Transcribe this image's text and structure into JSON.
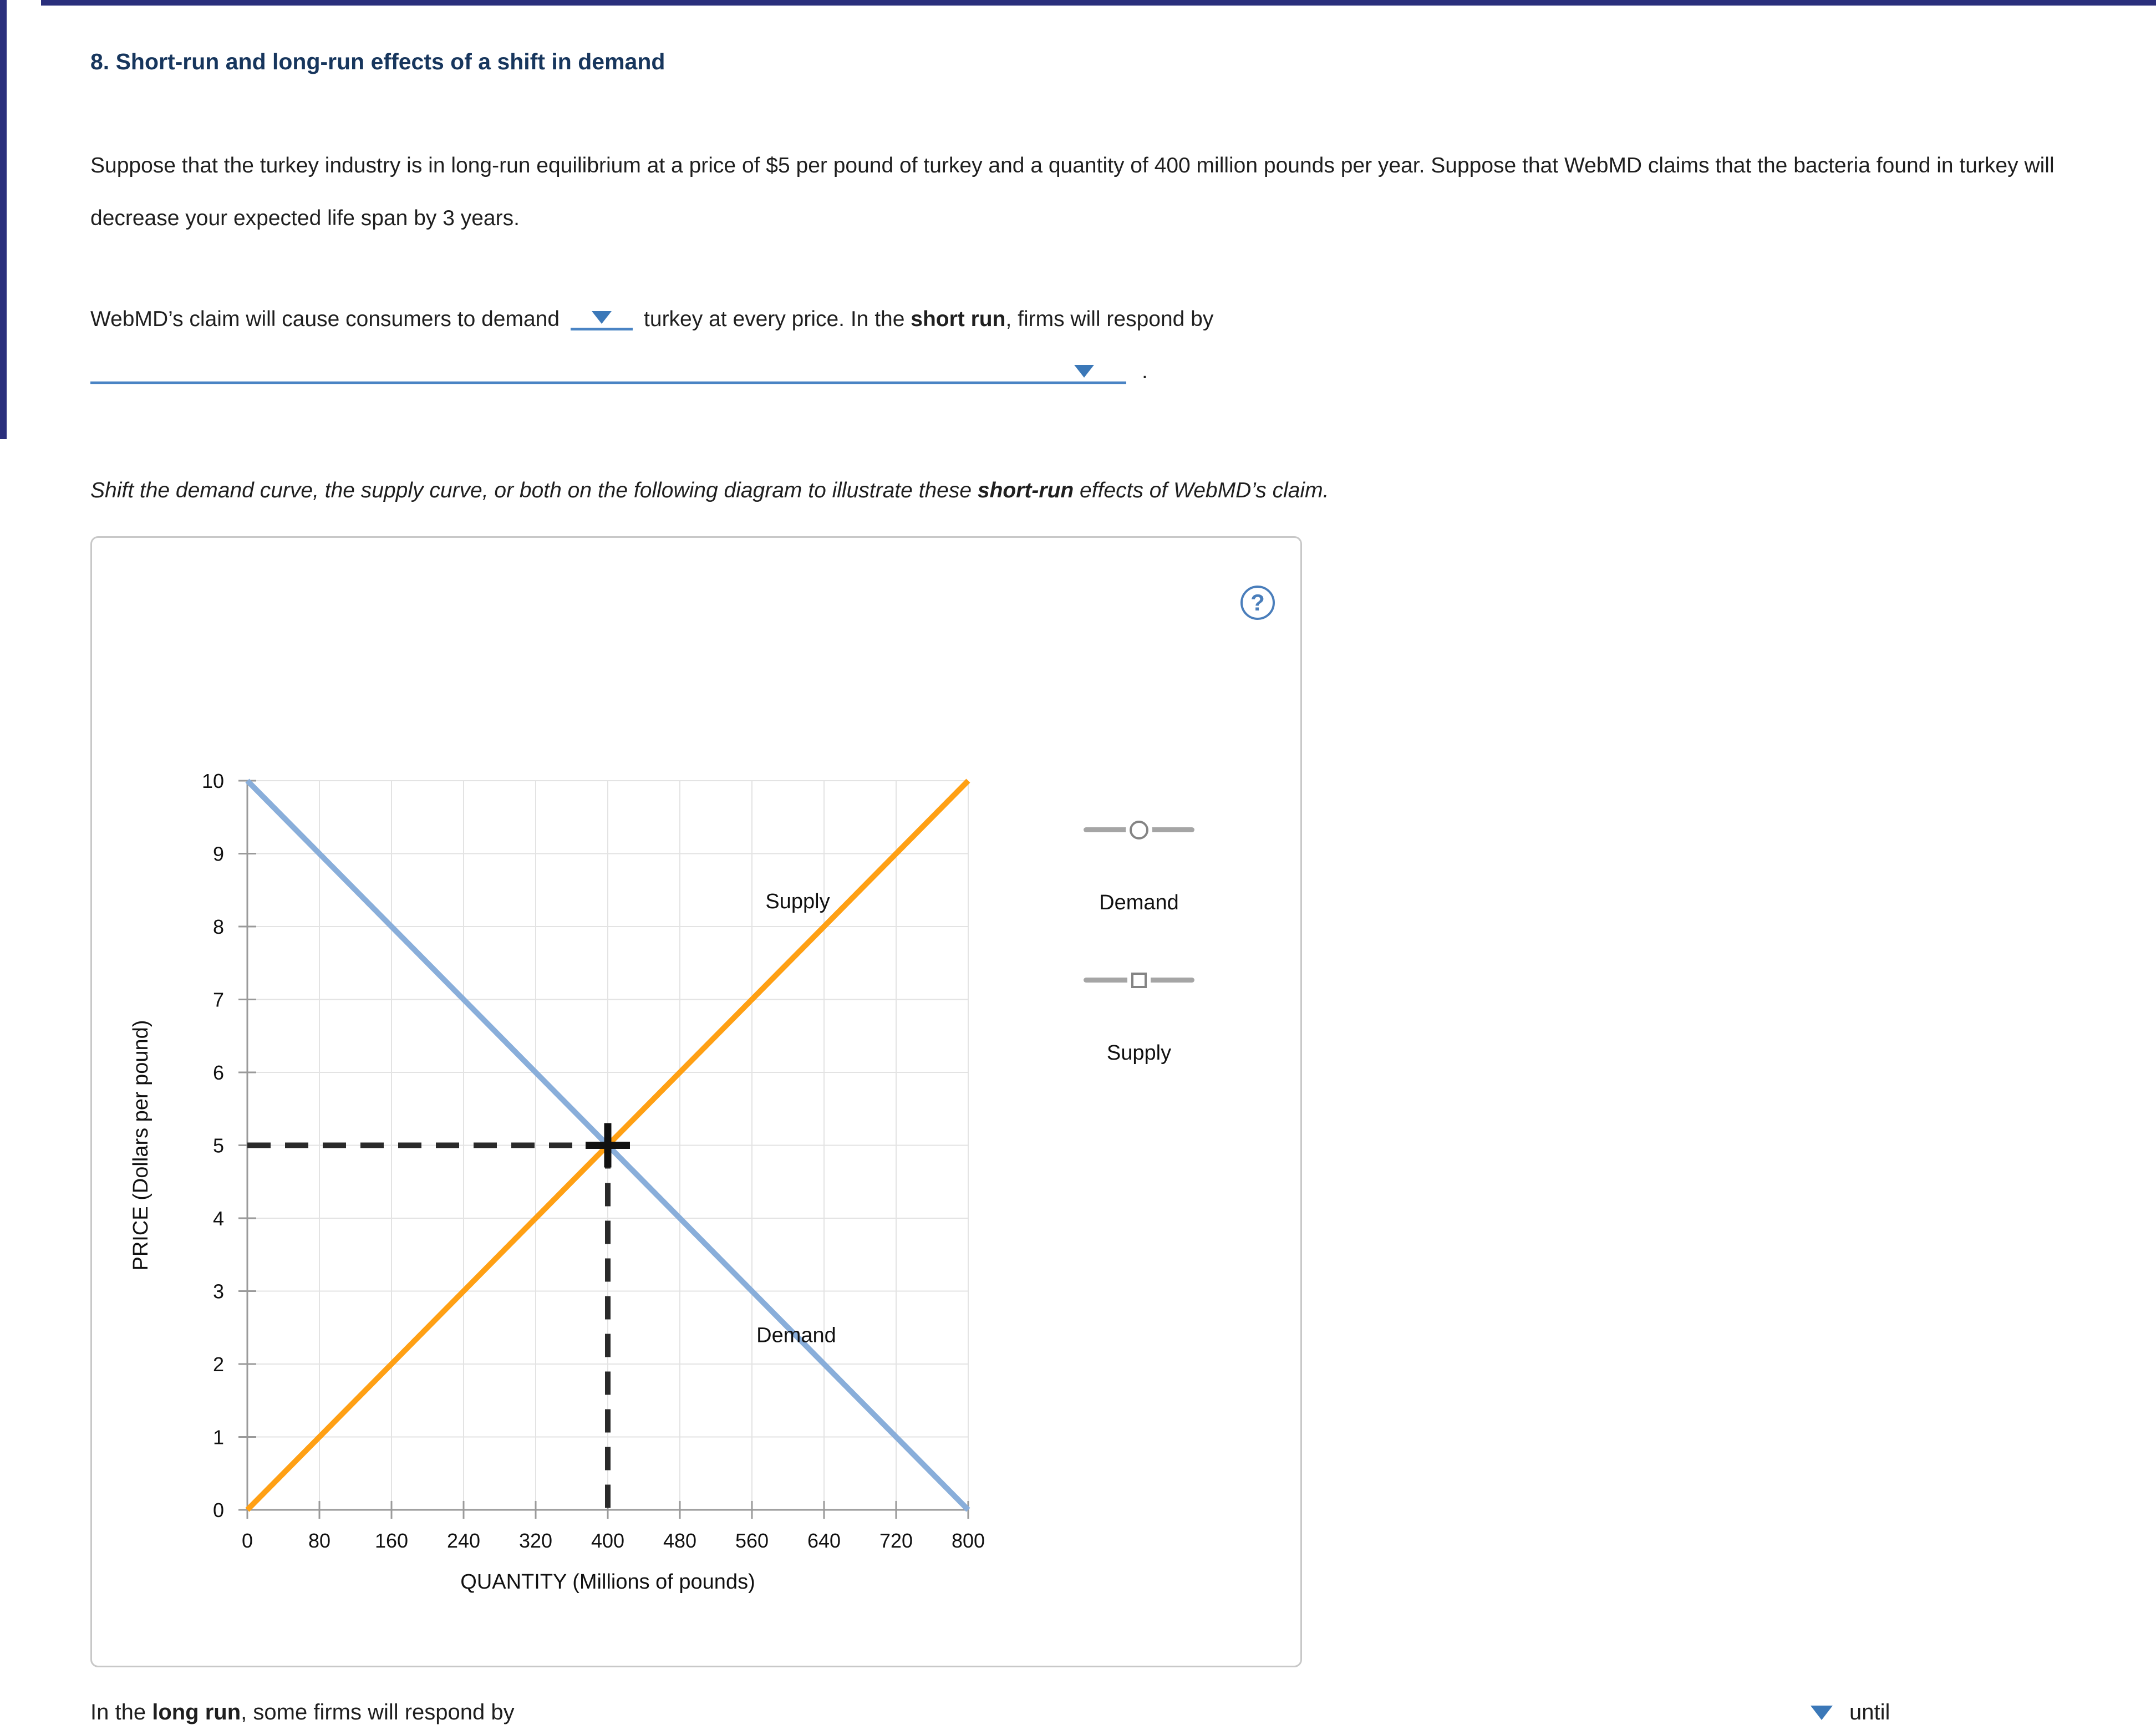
{
  "chrome": {
    "bar_color": "#2a2f7c"
  },
  "question": {
    "title": "8. Short-run and long-run effects of a shift in demand",
    "intro": "Suppose that the turkey industry is in long-run equilibrium at a price of $5 per pound of turkey and a quantity of 400 million pounds per year. Suppose that WebMD claims that the bacteria found in turkey will decrease your expected life span by 3 years.",
    "sentence": {
      "part1": "WebMD’s claim will cause consumers to demand",
      "part2": "turkey at every price. In the ",
      "bold": "short run",
      "part3": ", firms will respond by",
      "period": "."
    },
    "instruction": {
      "part1": "Shift the demand curve, the supply curve, or both on the following diagram to illustrate these ",
      "bold": "short-run",
      "part2": " effects of WebMD’s claim."
    },
    "followup": {
      "part1": "In the ",
      "bold": "long run",
      "part2": ", some firms will respond by",
      "suffix": "until"
    },
    "help_icon": "?"
  },
  "chart_data": {
    "type": "line",
    "title": "",
    "xlabel": "QUANTITY (Millions of pounds)",
    "ylabel": "PRICE (Dollars per pound)",
    "xlim": [
      0,
      800
    ],
    "ylim": [
      0,
      10
    ],
    "xticks": [
      0,
      80,
      160,
      240,
      320,
      400,
      480,
      560,
      640,
      720,
      800
    ],
    "yticks": [
      0,
      1,
      2,
      3,
      4,
      5,
      6,
      7,
      8,
      9,
      10
    ],
    "grid": true,
    "series": [
      {
        "name": "Demand",
        "color": "#89AEDA",
        "points": [
          [
            0,
            10
          ],
          [
            800,
            0
          ]
        ],
        "label": {
          "text": "Demand",
          "x": 565,
          "y": 2.3,
          "anchor": "start"
        }
      },
      {
        "name": "Supply",
        "color": "#FFA014",
        "points": [
          [
            0,
            0
          ],
          [
            800,
            10
          ]
        ],
        "label": {
          "text": "Supply",
          "x": 575,
          "y": 8.25,
          "anchor": "start"
        }
      }
    ],
    "equilibrium": {
      "quantity": 400,
      "price": 5
    }
  },
  "legend": {
    "items": [
      {
        "label": "Demand",
        "handle": "circle"
      },
      {
        "label": "Supply",
        "handle": "square"
      }
    ]
  }
}
